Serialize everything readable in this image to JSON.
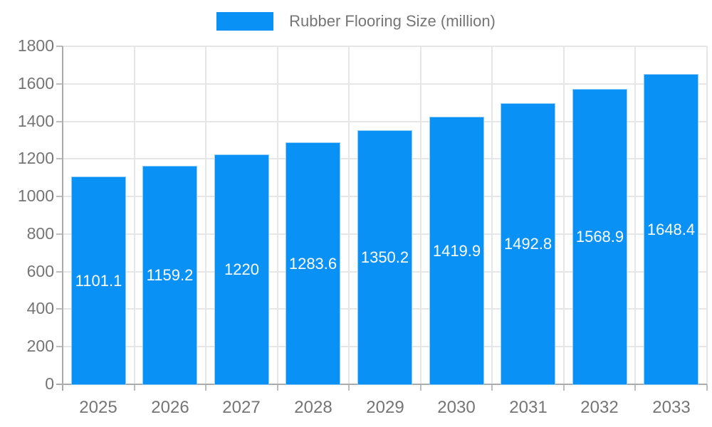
{
  "chart_data": {
    "type": "bar",
    "title": "",
    "legend": "Rubber Flooring Size (million)",
    "legend_position": "top",
    "categories": [
      "2025",
      "2026",
      "2027",
      "2028",
      "2029",
      "2030",
      "2031",
      "2032",
      "2033"
    ],
    "values": [
      1101.1,
      1159.2,
      1220,
      1283.6,
      1350.2,
      1419.9,
      1492.8,
      1568.9,
      1648.4
    ],
    "value_labels": [
      "1101.1",
      "1159.2",
      "1220",
      "1283.6",
      "1350.2",
      "1419.9",
      "1492.8",
      "1568.9",
      "1648.4"
    ],
    "xlabel": "",
    "ylabel": "",
    "ylim": [
      0,
      1800
    ],
    "yticks": [
      0,
      200,
      400,
      600,
      800,
      1000,
      1200,
      1400,
      1600,
      1800
    ],
    "grid": true,
    "data_labels_inside_bars": true,
    "colors": {
      "bar": "#0a91f5",
      "bar_edge": "#85c6f8",
      "axis_text": "#757575",
      "data_label_text": "#ffffff",
      "gridline": "#e6e6e6",
      "axis_line": "#ababab",
      "background": "#ffffff"
    }
  }
}
